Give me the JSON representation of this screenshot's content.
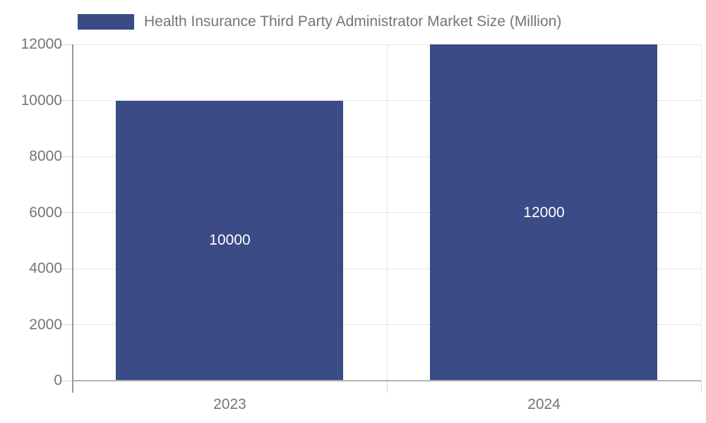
{
  "chart_data": {
    "type": "bar",
    "title": "Health Insurance Third Party Administrator Market Size (Million)",
    "categories": [
      "2023",
      "2024"
    ],
    "values": [
      10000,
      12000
    ],
    "value_labels": [
      "10000",
      "12000"
    ],
    "ytick_labels": [
      "0",
      "2000",
      "4000",
      "6000",
      "8000",
      "10000",
      "12000"
    ],
    "ylim": [
      0,
      12000
    ],
    "ytick_step": 2000,
    "xlabel": "",
    "ylabel": "",
    "grid": true,
    "legend_position": "top-left",
    "colors": {
      "bar": "#3b4b86",
      "bar_value_text": "#ffffff",
      "axis_text": "#757575",
      "gridline": "#e6e6e6",
      "y_axis_line": "#969696",
      "x_axis_line": "#b3b3b3",
      "tick": "#d4d4d4",
      "background": "#ffffff"
    }
  }
}
